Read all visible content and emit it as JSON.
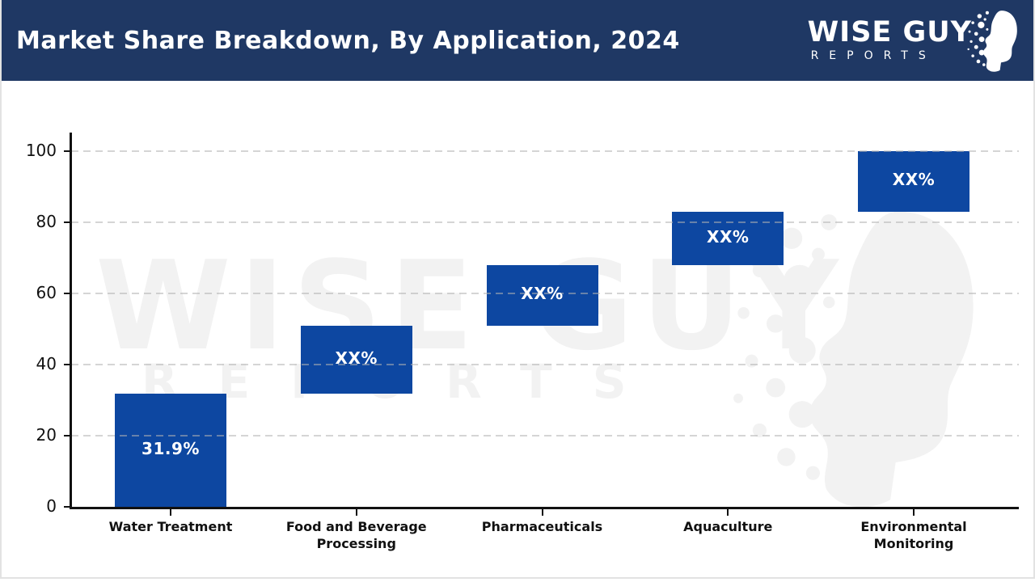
{
  "header": {
    "title": "Market Share Breakdown, By Application, 2024",
    "logo": {
      "line1": "WISE GUY",
      "line2": "REPORTS"
    }
  },
  "watermark": {
    "line1": "WISE GUY",
    "line2": "REPORTS"
  },
  "chart_data": {
    "type": "bar",
    "subtype": "waterfall",
    "title": "Market Share Breakdown, By Application, 2024",
    "categories": [
      "Water Treatment",
      "Food and Beverage Processing",
      "Pharmaceuticals",
      "Aquaculture",
      "Environmental Monitoring"
    ],
    "segments": [
      {
        "category": "Water Treatment",
        "start": 0,
        "end": 31.9,
        "label": "31.9%"
      },
      {
        "category": "Food and Beverage Processing",
        "start": 31.9,
        "end": 51,
        "label": "XX%"
      },
      {
        "category": "Pharmaceuticals",
        "start": 51,
        "end": 68,
        "label": "XX%"
      },
      {
        "category": "Aquaculture",
        "start": 68,
        "end": 83,
        "label": "XX%"
      },
      {
        "category": "Environmental Monitoring",
        "start": 83,
        "end": 100,
        "label": "XX%"
      }
    ],
    "xlabel": "",
    "ylabel": "",
    "ylim": [
      0,
      105
    ],
    "yticks": [
      0,
      20,
      40,
      60,
      80,
      100
    ],
    "grid": "horizontal-dashed",
    "legend": "none"
  },
  "colors": {
    "header_bg": "#1f3864",
    "bar": "#0d47a1",
    "bar_label": "#ffffff",
    "grid": "#d9d9d9",
    "axis": "#111111",
    "watermark": "#f2f2f2",
    "title_text": "#ffffff"
  }
}
